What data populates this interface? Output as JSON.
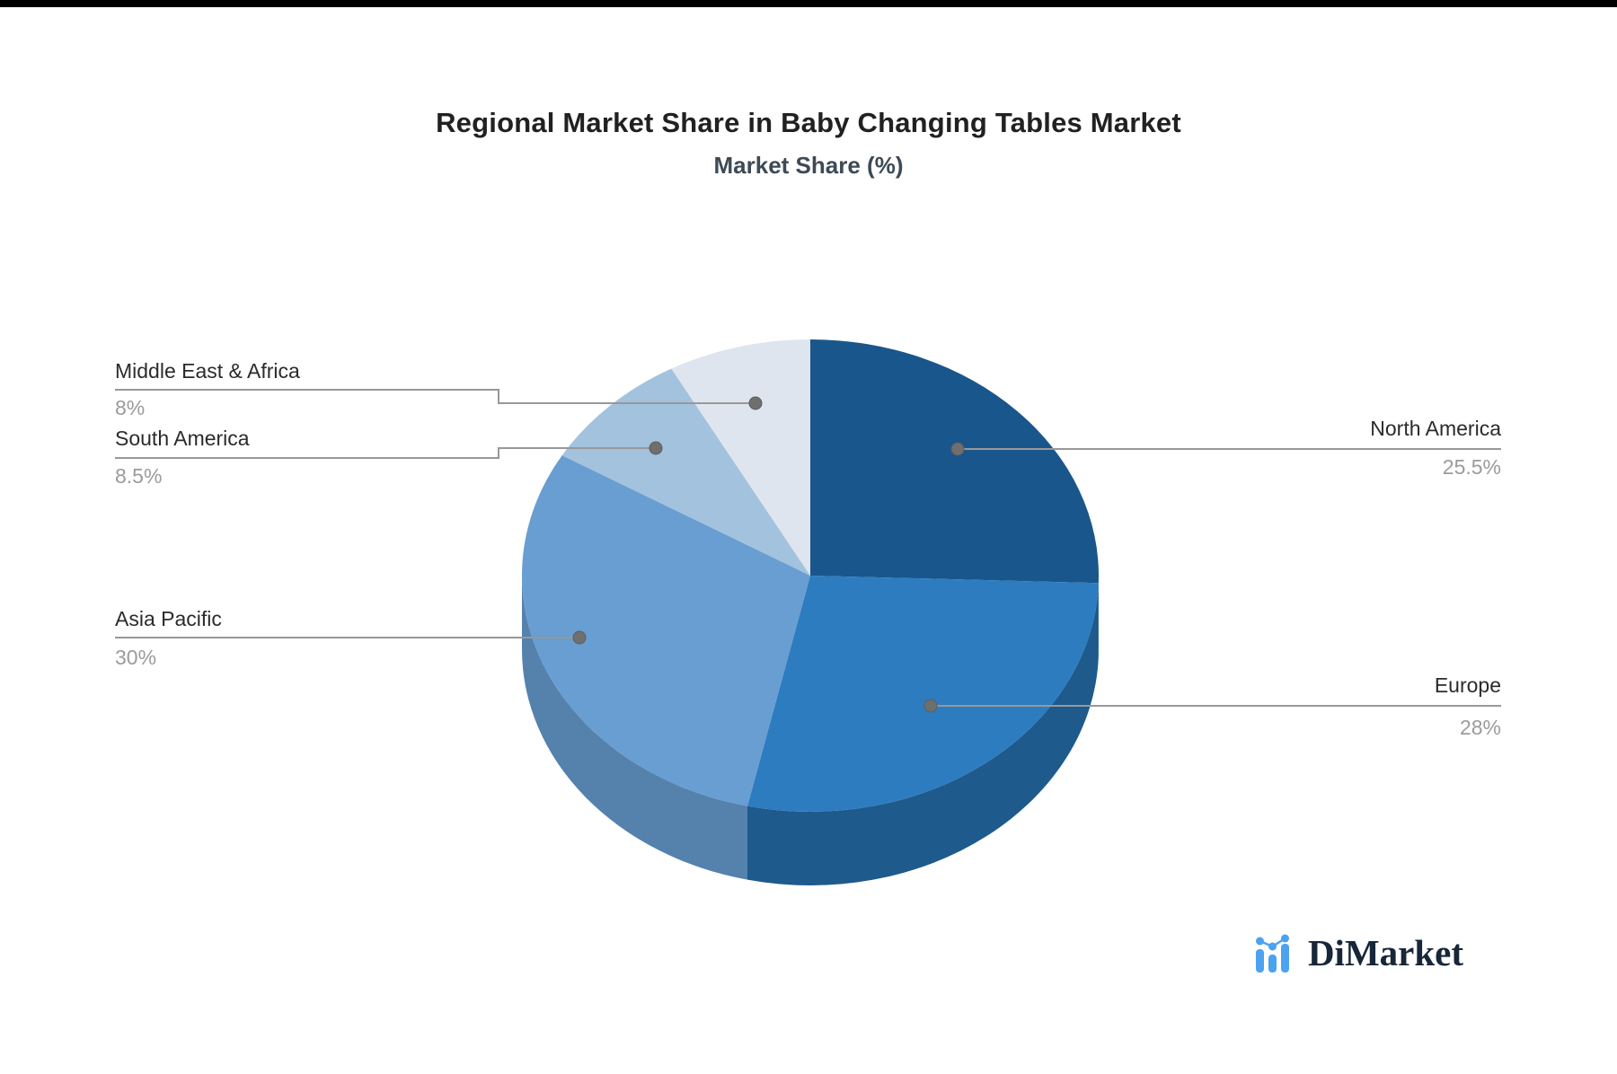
{
  "page": {
    "background": "#ffffff",
    "top_bar_color": "#000000"
  },
  "header": {
    "title": "Regional Market Share in Baby Changing Tables Market",
    "subtitle": "Market Share (%)"
  },
  "chart_data": {
    "type": "pie",
    "title": "Regional Market Share in Baby Changing Tables Market",
    "subtitle": "Market Share (%)",
    "unit": "%",
    "effect_3d": true,
    "start_angle": "12-oclock",
    "direction": "clockwise",
    "label_position": "outside-callout",
    "legend": "none",
    "series": [
      {
        "label": "North America",
        "value": 25.5,
        "display": "25.5%",
        "color": "#19568C",
        "side_color": "#123F69"
      },
      {
        "label": "Europe",
        "value": 28,
        "display": "28%",
        "color": "#2D7CC0",
        "side_color": "#1E5A8C"
      },
      {
        "label": "Asia Pacific",
        "value": 30,
        "display": "30%",
        "color": "#689ED1",
        "side_color": "#5581AD"
      },
      {
        "label": "South America",
        "value": 8.5,
        "display": "8.5%",
        "color": "#A3C2DE",
        "side_color": "#7E9CB9"
      },
      {
        "label": "Middle East & Africa",
        "value": 8,
        "display": "8%",
        "color": "#DEE5EE",
        "side_color": "#ABB6C4"
      }
    ]
  },
  "colors": {
    "callout_line": "#989898",
    "callout_dot": "#6f6f6f",
    "label_text": "#2b2b2b",
    "percent_text": "#9b9b9b",
    "title_text": "#212121",
    "subtitle_text": "#3d4a56"
  },
  "logo": {
    "text": "DiMarket",
    "icon": "mini-bar-line-chart-icon",
    "icon_color": "#4BA2F1",
    "text_color": "#182639"
  }
}
